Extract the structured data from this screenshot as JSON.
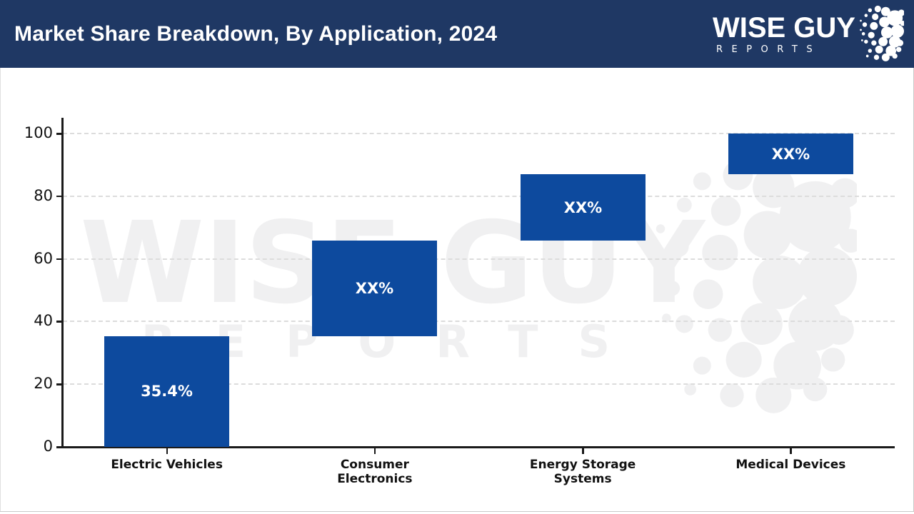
{
  "header": {
    "title": "Market Share Breakdown, By Application, 2024",
    "logo": {
      "line1": "WISE GUY",
      "line2": "REPORTS"
    }
  },
  "watermark": {
    "line1": "WISE GUY",
    "line2": "REPORTS"
  },
  "chart_data": {
    "type": "bar",
    "subtype": "floating-waterfall",
    "title": "Market Share Breakdown, By Application, 2024",
    "categories": [
      "Electric Vehicles",
      "Consumer Electronics",
      "Energy Storage Systems",
      "Medical Devices"
    ],
    "category_label_lines": [
      [
        "Electric Vehicles"
      ],
      [
        "Consumer",
        "Electronics"
      ],
      [
        "Energy Storage",
        "Systems"
      ],
      [
        "Medical Devices"
      ]
    ],
    "segments": [
      {
        "category": "Electric Vehicles",
        "start": 0,
        "end": 35.4,
        "label": "35.4%"
      },
      {
        "category": "Consumer Electronics",
        "start": 35.4,
        "end": 65.8,
        "label": "XX%"
      },
      {
        "category": "Energy Storage Systems",
        "start": 65.8,
        "end": 87.0,
        "label": "XX%"
      },
      {
        "category": "Medical Devices",
        "start": 87.0,
        "end": 100,
        "label": "XX%"
      }
    ],
    "xlabel": "",
    "ylabel": "",
    "ylim": [
      0,
      105
    ],
    "yticks": [
      0,
      20,
      40,
      60,
      80,
      100
    ],
    "grid": "horizontal-dashed",
    "legend": "none",
    "colors": {
      "bar": "#0d4a9e",
      "bar_label": "#ffffff",
      "grid": "#dcdcdc",
      "axis": "#1a1a1a",
      "header_bg": "#1f3864",
      "watermark": "#f0f0f1"
    }
  }
}
